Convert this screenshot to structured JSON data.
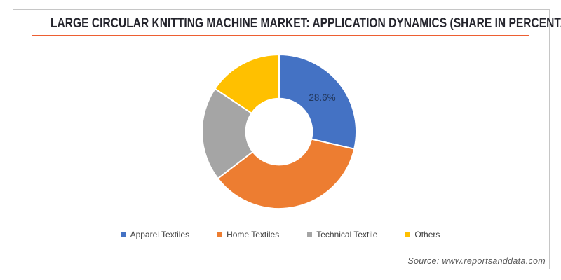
{
  "header": {
    "title": "LARGE CIRCULAR KNITTING MACHINE MARKET: APPLICATION DYNAMICS (SHARE IN PERCENTAGE)",
    "underline_color": "#ED5F32",
    "title_color": "#24242c"
  },
  "chart_data": {
    "type": "pie",
    "subtype": "donut",
    "title": "Large Circular Knitting Machine Market: Application Dynamics (Share in Percentage)",
    "categories": [
      "Apparel Textiles",
      "Home Textiles",
      "Technical Textile",
      "Others"
    ],
    "values": [
      28.6,
      36.0,
      19.8,
      15.6
    ],
    "colors": [
      "#4472C4",
      "#ED7D31",
      "#A5A5A5",
      "#FFC000"
    ],
    "data_labels": [
      "28.6%",
      "",
      "",
      ""
    ],
    "data_label_color": "#22375C",
    "start_angle_deg": 0,
    "direction": "clockwise",
    "inner_radius_ratio": 0.43,
    "slice_gap_color": "#ffffff",
    "legend_position": "bottom"
  },
  "footer": {
    "source": "Source: www.reportsanddata.com"
  }
}
